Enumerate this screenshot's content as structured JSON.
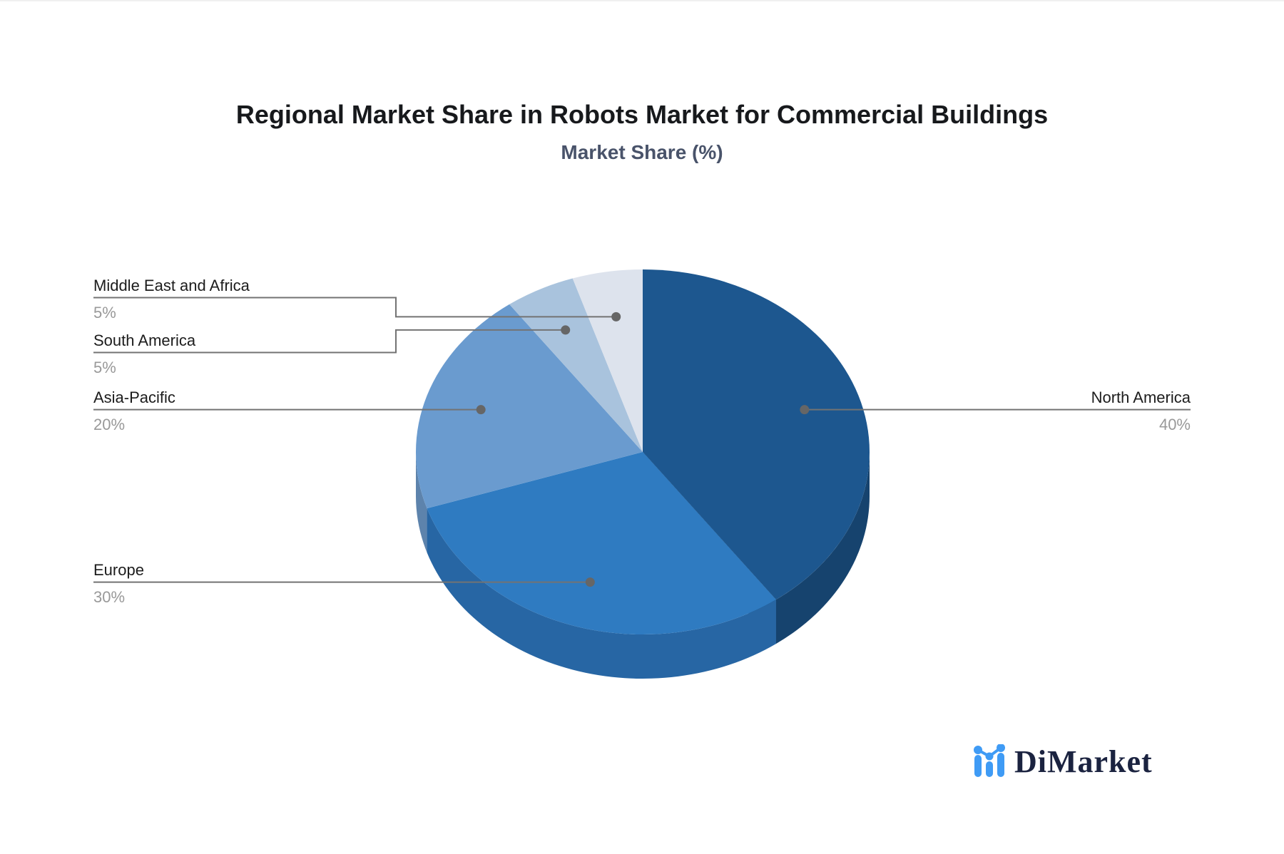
{
  "title": "Regional Market Share in Robots Market for Commercial Buildings",
  "subtitle": "Market Share (%)",
  "logo": {
    "text": "DiMarket",
    "icon": "mini-bar-chart-icon",
    "icon_color": "#3f9bf5",
    "text_color": "#1b2340"
  },
  "colors": {
    "connector_line": "#737373",
    "connector_dot": "#666666",
    "label_name": "#1c1c1c",
    "label_percent": "#999999",
    "title": "#17191c",
    "subtitle": "#49536a",
    "background": "#ffffff"
  },
  "chart_data": {
    "type": "pie",
    "title": "Regional Market Share in Robots Market for Commercial Buildings",
    "subtitle": "Market Share (%)",
    "unit": "%",
    "style": "3d-pie",
    "start_angle_deg": 0,
    "direction": "clockwise",
    "legend_position": "none",
    "labels": "connector lines with name above and percent below",
    "slices": [
      {
        "name": "North America",
        "value": 40,
        "pct": "40%",
        "color": "#1d578f",
        "side_color": "#16436e"
      },
      {
        "name": "Europe",
        "value": 30,
        "pct": "30%",
        "color": "#2f7bc1",
        "side_color": "#2766a4"
      },
      {
        "name": "Asia-Pacific",
        "value": 20,
        "pct": "20%",
        "color": "#6a9bcf",
        "side_color": "#5d83ac"
      },
      {
        "name": "South America",
        "value": 5,
        "pct": "5%",
        "color": "#a9c3dd",
        "side_color": "#8aa6c4"
      },
      {
        "name": "Middle East and Africa",
        "value": 5,
        "pct": "5%",
        "color": "#dde3ed",
        "side_color": "#b9c4d4"
      }
    ]
  }
}
